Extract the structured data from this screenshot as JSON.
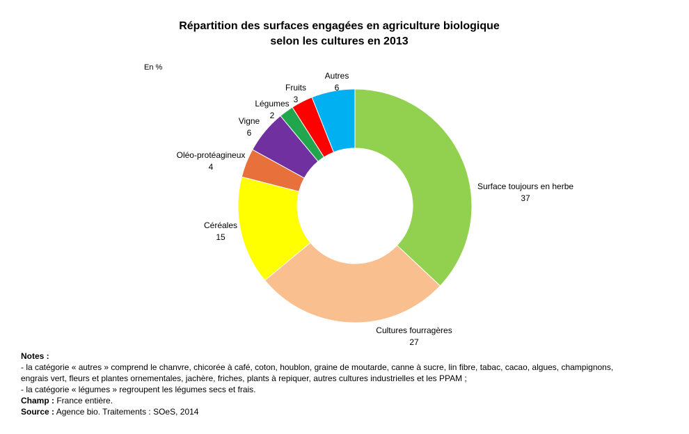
{
  "title": {
    "line1": "Répartition des surfaces engagées en agriculture biologique",
    "line2": "selon les cultures en 2013"
  },
  "unit_label": "En %",
  "chart_data": {
    "type": "pie",
    "subtype": "donut",
    "title": "Répartition des surfaces engagées en agriculture biologique selon les cultures en 2013",
    "unit": "En %",
    "start_angle_deg": 0,
    "direction": "clockwise",
    "inner_radius_ratio": 0.49,
    "total": 100,
    "slices": [
      {
        "label": "Surface toujours en herbe",
        "value": 37,
        "color": "#92D050"
      },
      {
        "label": "Cultures fourragères",
        "value": 27,
        "color": "#FABF8F"
      },
      {
        "label": "Céréales",
        "value": 15,
        "color": "#FFFF00"
      },
      {
        "label": "Oléo-protéagineux",
        "value": 4,
        "color": "#E8703A"
      },
      {
        "label": "Vigne",
        "value": 6,
        "color": "#7030A0"
      },
      {
        "label": "Légumes",
        "value": 2,
        "color": "#21A54D"
      },
      {
        "label": "Fruits",
        "value": 3,
        "color": "#FF0000"
      },
      {
        "label": "Autres",
        "value": 6,
        "color": "#00B0F0"
      }
    ]
  },
  "notes": {
    "heading": "Notes :",
    "line1": "- la catégorie « autres » comprend le chanvre, chicorée à café, coton, houblon, graine de moutarde, canne à sucre, lin fibre, tabac, cacao, algues, champignons,",
    "line2": "engrais vert, fleurs et plantes ornementales, jachère, friches, plants à repiquer, autres cultures industrielles et les PPAM ;",
    "line3": "- la catégorie « légumes » regroupent les légumes secs et frais.",
    "champ_label": "Champ :",
    "champ_text": " France entière.",
    "source_label": "Source :",
    "source_text": " Agence bio. Traitements : SOeS, 2014"
  }
}
